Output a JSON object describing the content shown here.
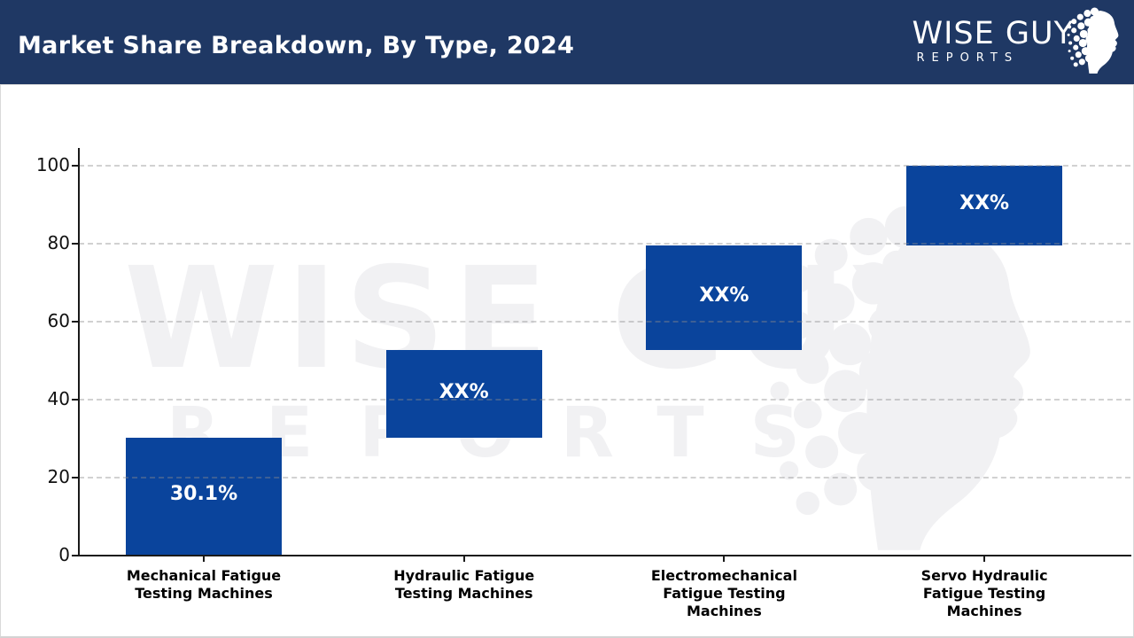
{
  "header": {
    "title": "Market Share Breakdown, By Type, 2024",
    "brand": {
      "line1": "WISE GUY",
      "line2": "REPORTS"
    }
  },
  "watermark": {
    "line1": "WISE GUY",
    "line2": "REPORTS"
  },
  "colors": {
    "header_bg": "#1F3864",
    "bar": "#0A449C",
    "grid": "#D9D9D9",
    "axis": "#1A1A1A",
    "watermark": "#F1F1F3",
    "bar_label_text": "#FFFFFF"
  },
  "chart_data": {
    "type": "bar",
    "subtype": "waterfall",
    "title": "Market Share Breakdown, By Type, 2024",
    "xlabel": "",
    "ylabel": "",
    "ylim": [
      0,
      104
    ],
    "yticks": [
      0,
      20,
      40,
      60,
      80,
      100
    ],
    "grid": "horizontal-dashed",
    "legend": null,
    "categories": [
      "Mechanical Fatigue Testing Machines",
      "Hydraulic Fatigue Testing Machines",
      "Electromechanical Fatigue Testing Machines",
      "Servo Hydraulic Fatigue Testing Machines"
    ],
    "categories_wrapped": [
      [
        "Mechanical Fatigue",
        "Testing Machines"
      ],
      [
        "Hydraulic Fatigue",
        "Testing Machines"
      ],
      [
        "Electromechanical",
        "Fatigue Testing",
        "Machines"
      ],
      [
        "Servo Hydraulic",
        "Fatigue Testing",
        "Machines"
      ]
    ],
    "segments": [
      {
        "start": 0,
        "end": 30.1,
        "label": "30.1%"
      },
      {
        "start": 30.1,
        "end": 52.6,
        "label": "XX%"
      },
      {
        "start": 52.6,
        "end": 79.6,
        "label": "XX%"
      },
      {
        "start": 79.6,
        "end": 100,
        "label": "XX%"
      }
    ]
  }
}
